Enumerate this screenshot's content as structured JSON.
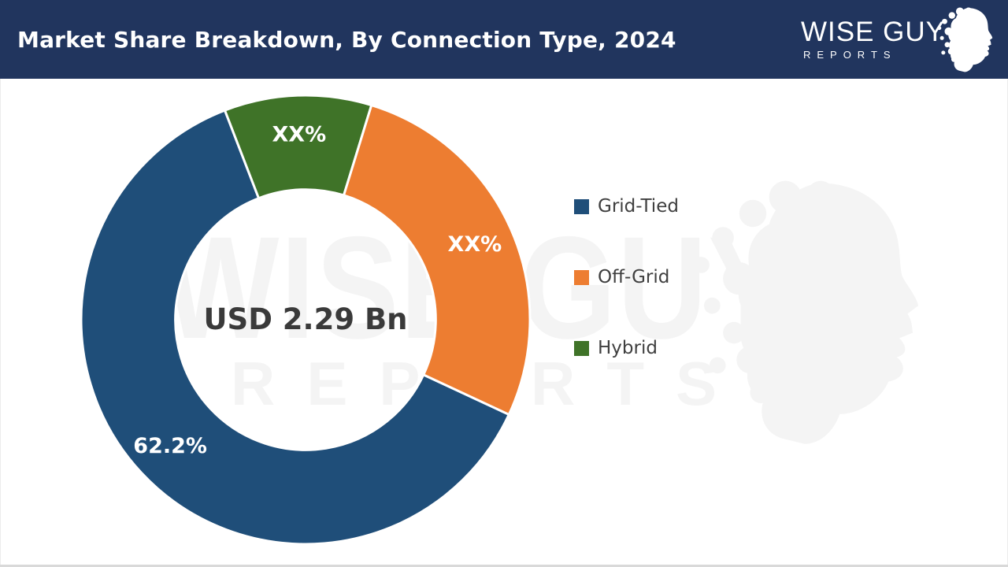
{
  "header": {
    "title": "Market Share Breakdown, By Connection Type, 2024",
    "brand": {
      "line1": "WISE GUY",
      "line2": "REPORTS"
    }
  },
  "chart_data": {
    "type": "pie",
    "subtype": "donut",
    "title": "Market Share Breakdown, By Connection Type, 2024",
    "center_label": "USD 2.29 Bn",
    "categories": [
      "Grid-Tied",
      "Off-Grid",
      "Hybrid"
    ],
    "values": [
      62.2,
      27.2,
      10.6
    ],
    "value_labels": [
      "62.2%",
      "XX%",
      "XX%"
    ],
    "colors": [
      "#1F4E79",
      "#ED7D31",
      "#3F7328"
    ],
    "start_angle_deg": 115,
    "draw_order": [
      0,
      2,
      1
    ],
    "inner_radius_ratio": 0.58,
    "legend_position": "right"
  },
  "watermark": {
    "line1": "WISE GUY",
    "line2": "REPORTS"
  },
  "colors": {
    "header_bg": "#21355E",
    "title_text": "#FFFFFF",
    "center_text": "#3A3A3A",
    "legend_text": "#3F3F3F",
    "watermark": "#F4F4F4",
    "bottom_line": "#D9D9D9"
  }
}
